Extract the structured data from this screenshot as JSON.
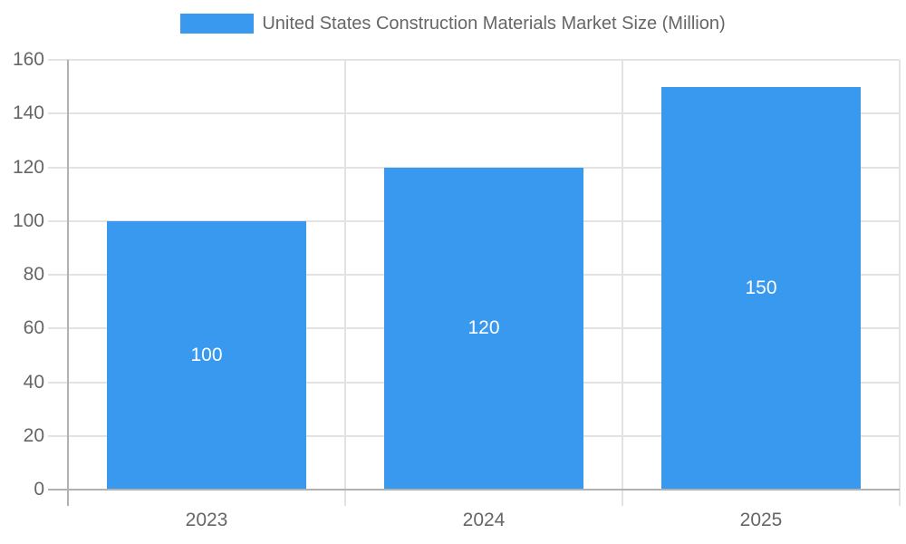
{
  "chart_data": {
    "type": "bar",
    "title": "United States Construction Materials Market Size (Million)",
    "categories": [
      "2023",
      "2024",
      "2025"
    ],
    "values": [
      100,
      120,
      150
    ],
    "bar_value_labels": [
      "100",
      "120",
      "150"
    ],
    "xlabel": "",
    "ylabel": "",
    "ylim": [
      0,
      160
    ],
    "ytick_step": 20,
    "yticks": [
      0,
      20,
      40,
      60,
      80,
      100,
      120,
      140,
      160
    ],
    "grid": true,
    "legend_position": "top-center"
  },
  "legend": {
    "label": "United States Construction Materials Market Size (Million)"
  },
  "colors": {
    "bar": "#3899EE",
    "grid_line": "#E3E3E3",
    "axis_line": "#B1B1B1",
    "tick_text": "#666666",
    "bar_label_text": "#FFFFFF",
    "background": "#FFFFFF"
  }
}
